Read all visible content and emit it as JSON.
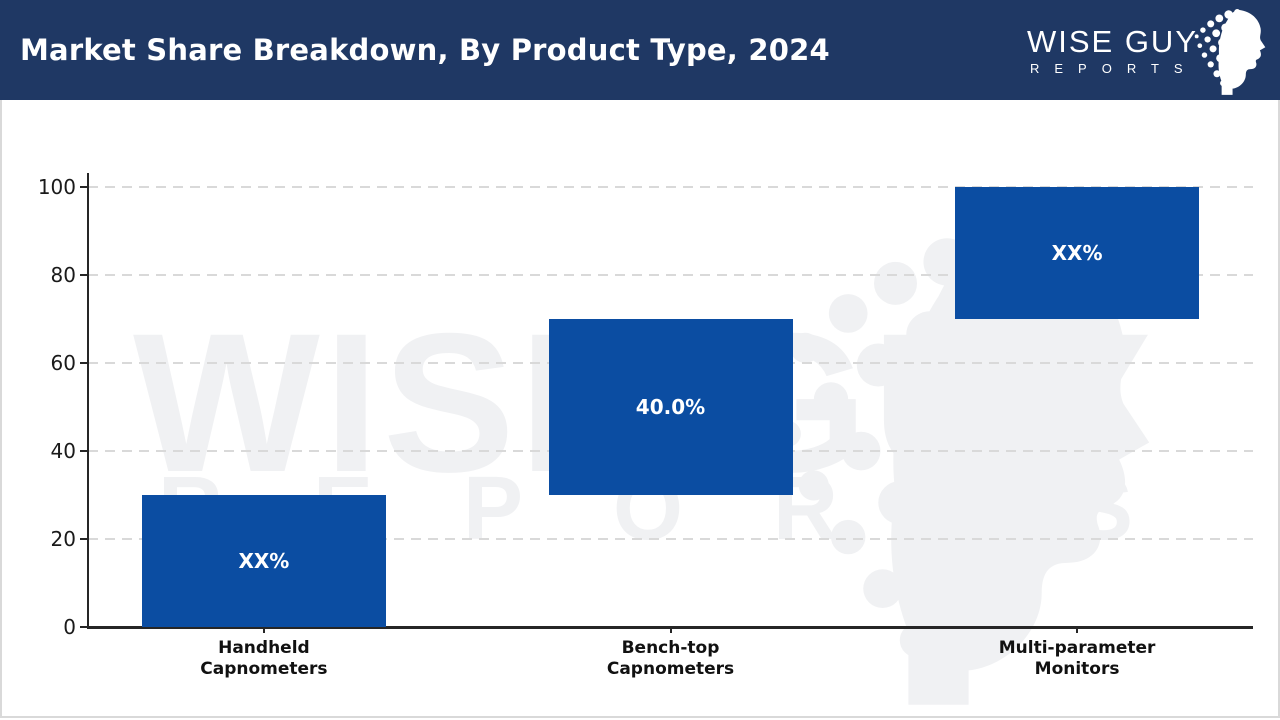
{
  "header": {
    "title": "Market Share Breakdown, By Product Type, 2024",
    "logo": {
      "line1": "WISE GUY",
      "line2": "REPORTS"
    }
  },
  "watermark": {
    "line1": "WISE GUY",
    "line2": "REPORTS"
  },
  "chart_data": {
    "type": "bar",
    "subtype": "waterfall",
    "title": "Market Share Breakdown, By Product Type, 2024",
    "categories": [
      "Handheld\nCapnometers",
      "Bench-top\nCapnometers",
      "Multi-parameter\nMonitors"
    ],
    "bars": [
      {
        "category": "Handheld Capnometers",
        "start": 0,
        "end": 30,
        "label": "XX%"
      },
      {
        "category": "Bench-top Capnometers",
        "start": 30,
        "end": 70,
        "label": "40.0%"
      },
      {
        "category": "Multi-parameter Monitors",
        "start": 70,
        "end": 100,
        "label": "XX%"
      }
    ],
    "yticks": [
      0,
      20,
      40,
      60,
      80,
      100
    ],
    "ylim": [
      0,
      100
    ],
    "xlabel": "",
    "ylabel": "",
    "grid": "horizontal-dashed",
    "legend": "none",
    "bar_color": "#0b4da2",
    "bar_label_color": "#ffffff"
  },
  "colors": {
    "header_bg": "#1f3864",
    "bar": "#0b4da2",
    "grid": "#d9d9d9",
    "axis": "#262626",
    "watermark": "#f0f1f3",
    "frame_border": "#d9d9d9"
  }
}
